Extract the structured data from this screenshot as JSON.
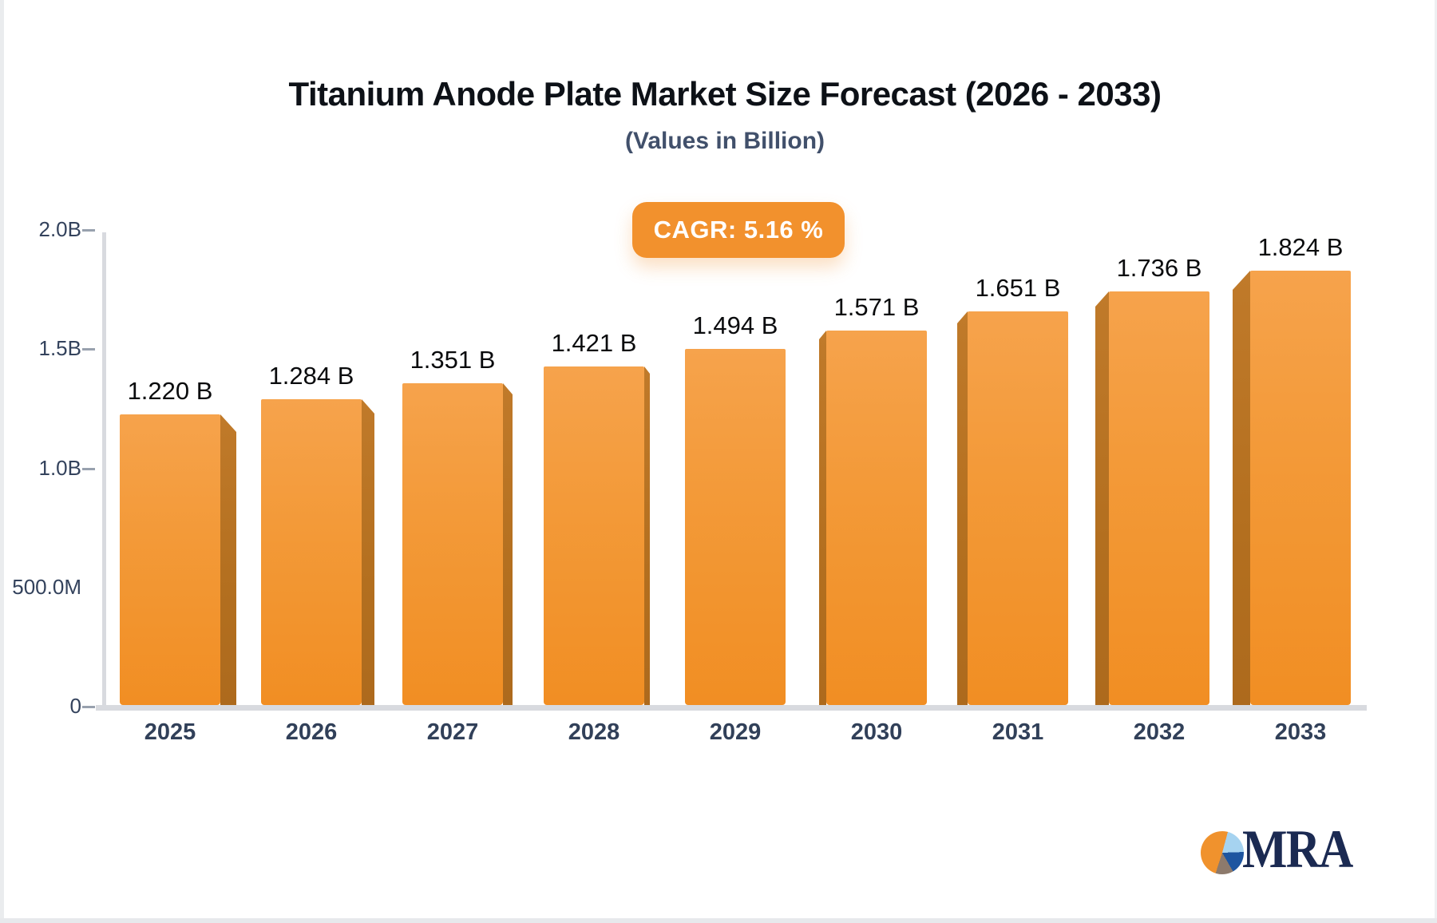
{
  "title": "Titanium Anode Plate Market Size Forecast (2026 - 2033)",
  "subtitle": "(Values in Billion)",
  "badge": {
    "label": "CAGR: 5.16 %"
  },
  "logo": {
    "text": "MRA",
    "icon": "pie-chart-icon"
  },
  "chart_data": {
    "type": "bar",
    "title": "Titanium Anode Plate Market Size Forecast (2026 - 2033)",
    "subtitle": "(Values in Billion)",
    "cagr_label": "CAGR: 5.16 %",
    "cagr_percent": 5.16,
    "categories": [
      "2025",
      "2026",
      "2027",
      "2028",
      "2029",
      "2030",
      "2031",
      "2032",
      "2033"
    ],
    "values": [
      1.22,
      1.284,
      1.351,
      1.421,
      1.494,
      1.571,
      1.651,
      1.736,
      1.824
    ],
    "value_labels": [
      "1.220 B",
      "1.284 B",
      "1.351 B",
      "1.421 B",
      "1.494 B",
      "1.571 B",
      "1.651 B",
      "1.736 B",
      "1.824 B"
    ],
    "xlabel": "",
    "ylabel": "",
    "ylim": [
      0,
      2.0
    ],
    "y_ticks": [
      {
        "label": "2.0B",
        "value": 2.0,
        "dash": true
      },
      {
        "label": "1.5B",
        "value": 1.5,
        "dash": true
      },
      {
        "label": "1.0B",
        "value": 1.0,
        "dash": true
      },
      {
        "label": "500.0M",
        "value": 0.5,
        "dash": false
      },
      {
        "label": "0",
        "value": 0.0,
        "dash": true
      }
    ],
    "grid": false,
    "legend": "none",
    "bar_style": "3d-extruded",
    "colors": {
      "bar_face_top": "#F6A34C",
      "bar_face_bottom": "#F18E23",
      "bar_side": "#B36F1F",
      "axis": "#D8DADF",
      "tick_dash": "#98A1AE",
      "axis_label": "#33425C",
      "value_label": "#0A0B0D"
    }
  },
  "colors": {
    "badge_bg": "#F2912D",
    "badge_text": "#FFFFFF",
    "title": "#0D1117",
    "subtitle": "#41506B",
    "logo_navy": "#1B2A52",
    "logo_orange": "#F0922D",
    "logo_lightblue": "#A6D3F0",
    "logo_darkblue": "#1D55A0",
    "logo_gray": "#8D7A6C"
  }
}
